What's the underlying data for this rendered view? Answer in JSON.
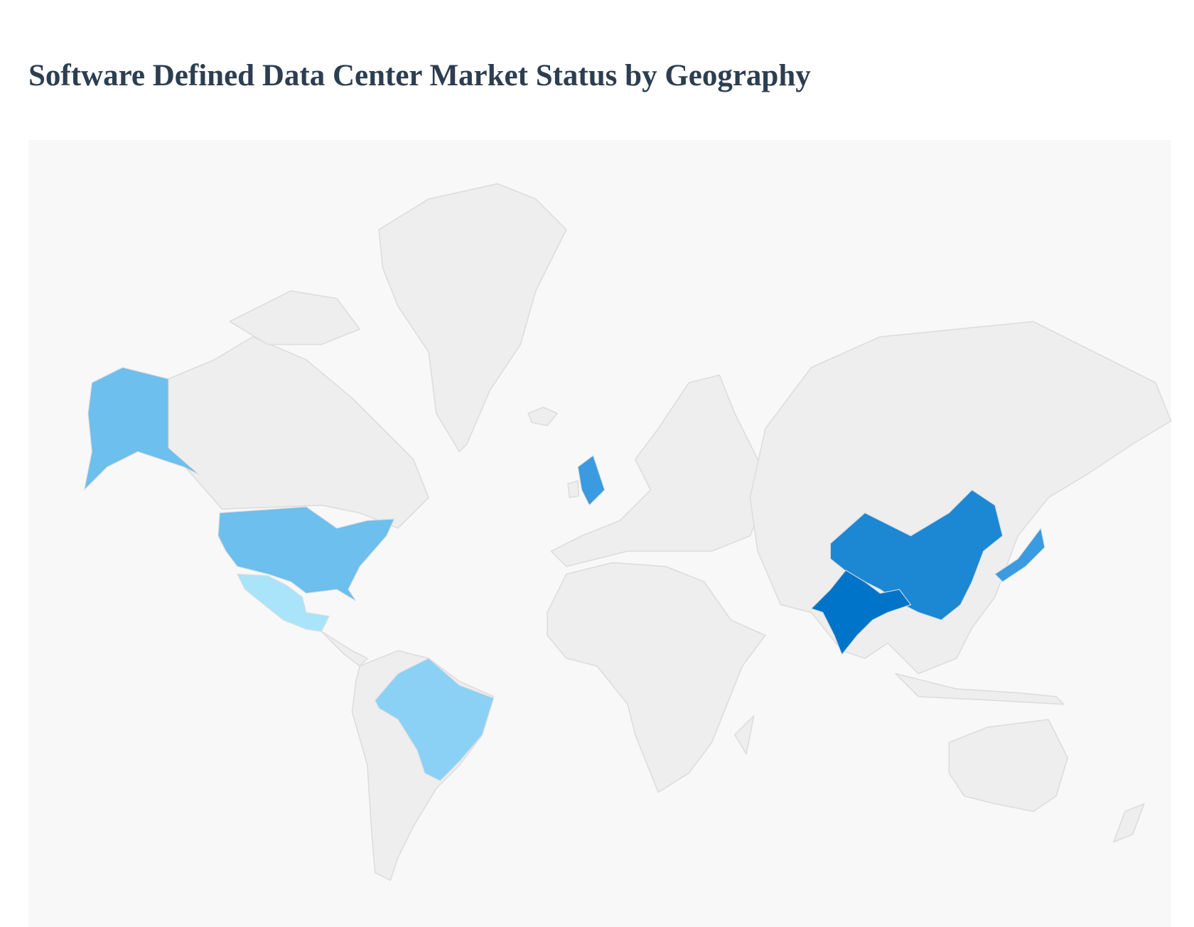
{
  "title": "Software Defined Data Center Market Status by Geography"
}
